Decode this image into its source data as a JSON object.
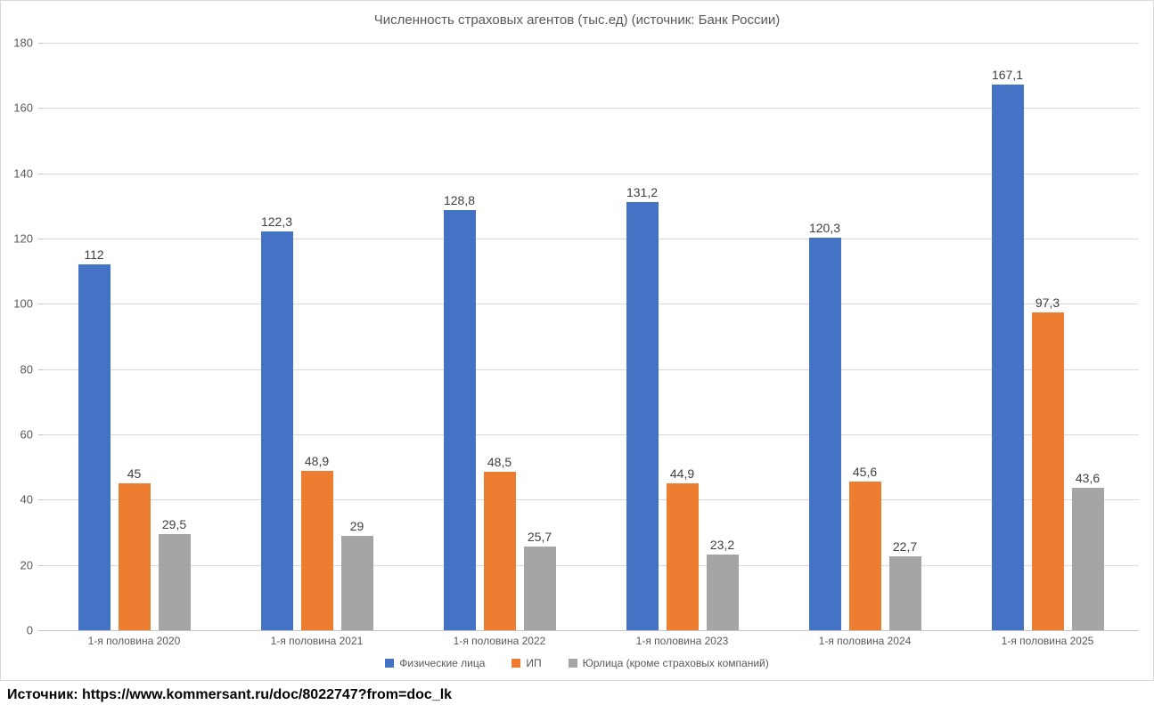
{
  "chart_data": {
    "type": "bar",
    "title": "Численность страховых агентов (тыс.ед) (источник: Банк России)",
    "categories": [
      "1-я половина 2020",
      "1-я половина 2021",
      "1-я половина 2022",
      "1-я половина 2023",
      "1-я половина 2024",
      "1-я половина 2025"
    ],
    "series": [
      {
        "name": "Физические лица",
        "color": "#4472C4",
        "values": [
          112,
          122.3,
          128.8,
          131.2,
          120.3,
          167.1
        ],
        "labels": [
          "112",
          "122,3",
          "128,8",
          "131,2",
          "120,3",
          "167,1"
        ]
      },
      {
        "name": "ИП",
        "color": "#ED7D31",
        "values": [
          45,
          48.9,
          48.5,
          44.9,
          45.6,
          97.3
        ],
        "labels": [
          "45",
          "48,9",
          "48,5",
          "44,9",
          "45,6",
          "97,3"
        ]
      },
      {
        "name": "Юрлица (кроме страховых компаний)",
        "color": "#A5A5A5",
        "values": [
          29.5,
          29,
          25.7,
          23.2,
          22.7,
          43.6
        ],
        "labels": [
          "29,5",
          "29",
          "25,7",
          "23,2",
          "22,7",
          "43,6"
        ]
      }
    ],
    "xlabel": "",
    "ylabel": "",
    "ylim": [
      0,
      180
    ],
    "ytick_step": 20,
    "grid": "horizontal",
    "legend_position": "bottom",
    "colors": {
      "gridline": "#d9d9d9",
      "axis_text": "#595959",
      "data_label_text": "#404040"
    }
  },
  "footer": {
    "source_text": "Источник: https://www.kommersant.ru/doc/8022747?from=doc_lk"
  }
}
